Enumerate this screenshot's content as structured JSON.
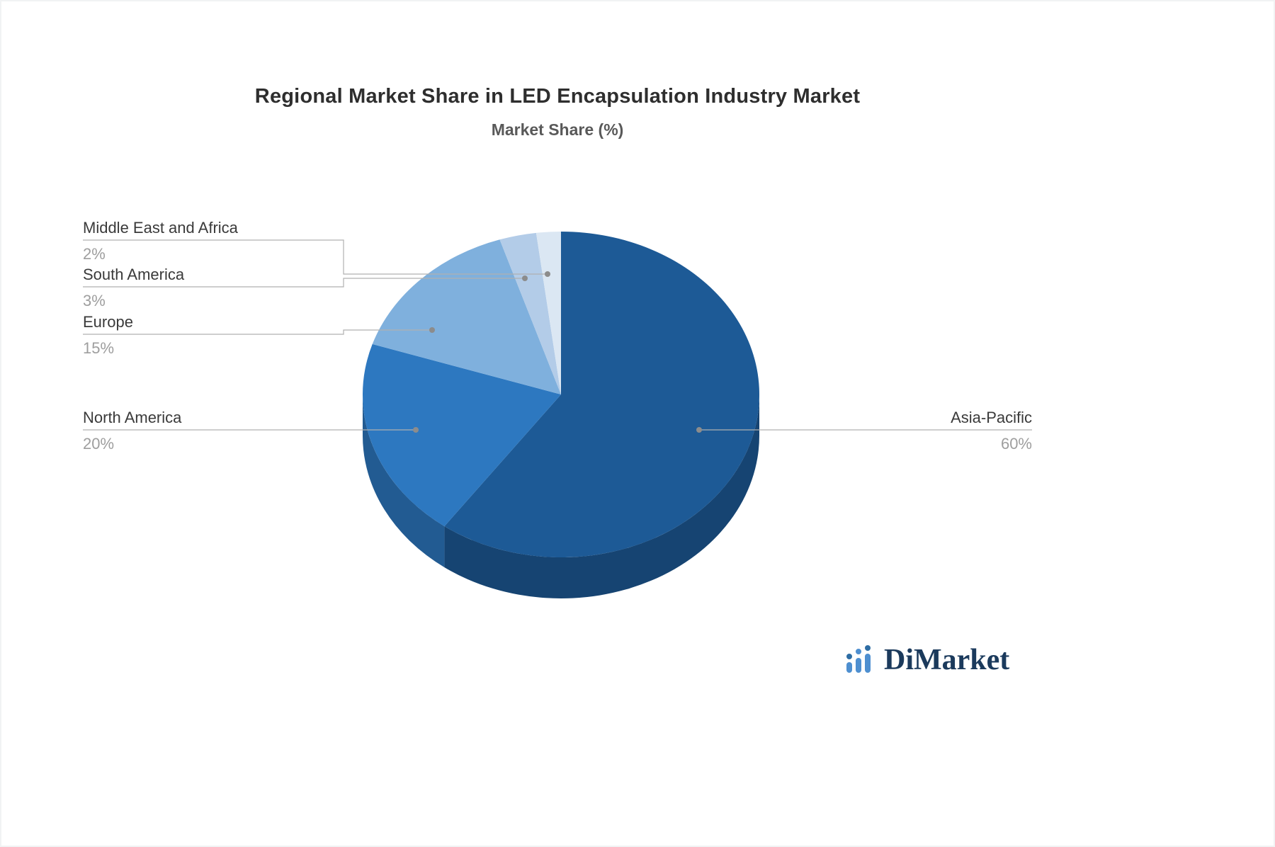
{
  "page": {
    "background": "#ffffff"
  },
  "chart_data": {
    "type": "pie",
    "style": "3d-pie",
    "title": "Regional Market Share in LED Encapsulation Industry Market",
    "subtitle": "Market Share (%)",
    "unit": "%",
    "labels": [
      "Asia-Pacific",
      "North America",
      "Europe",
      "South America",
      "Middle East and Africa"
    ],
    "values": [
      60,
      20,
      15,
      3,
      2
    ],
    "display_values": [
      "60%",
      "20%",
      "15%",
      "3%",
      "2%"
    ],
    "colors": [
      "#1d5a96",
      "#2d78c0",
      "#7fb0dd",
      "#b3cce8",
      "#dbe7f3"
    ],
    "legend_position": "callout-labels",
    "leader_line_color": "#b0b0b0",
    "label_name_color": "#3a3a3a",
    "label_value_color": "#9e9e9e"
  },
  "logo": {
    "text": "DiMarket",
    "color": "#1b3a5c",
    "icon": "bar-chart-icon",
    "icon_bar_color": "#4e8fd0",
    "icon_dot_color": "#2e6da4"
  }
}
